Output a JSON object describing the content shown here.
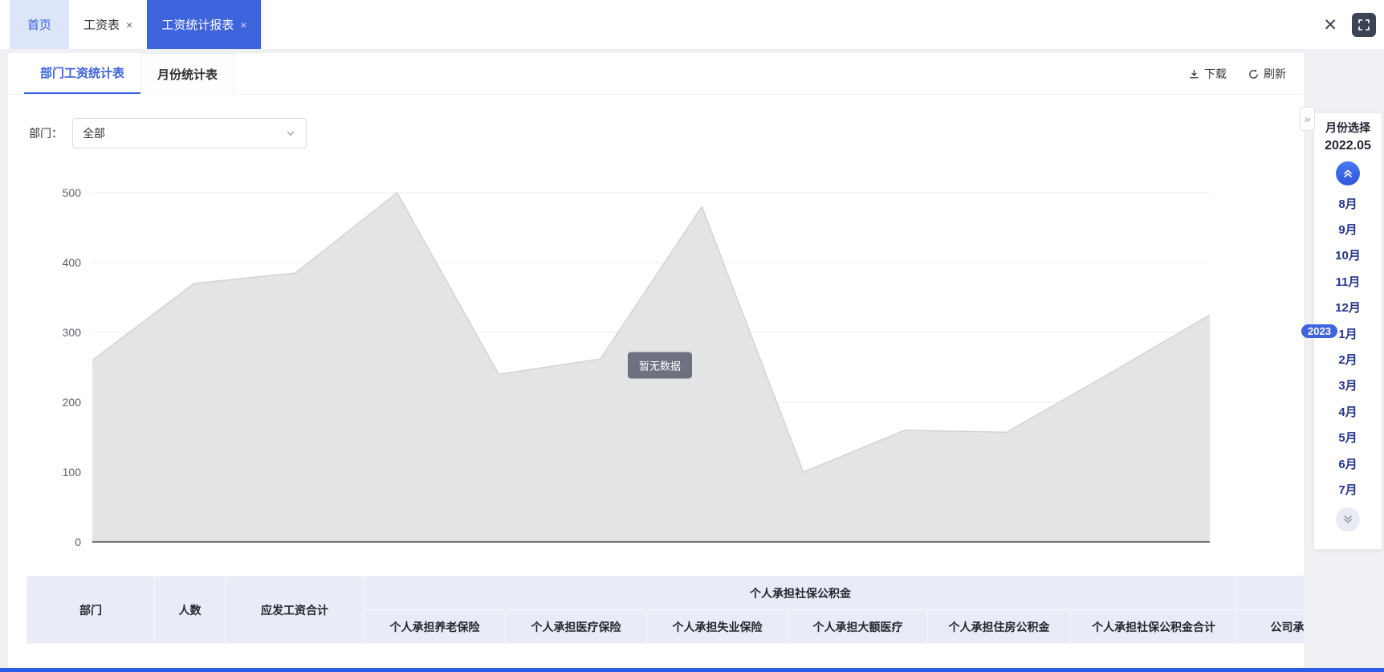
{
  "colors": {
    "accent": "#3d63dd",
    "table_header_bg": "#e9ecf6",
    "month_text": "#26368b",
    "empty_badge_bg": "#6e7280",
    "bottom_bar": "#2c5ce5"
  },
  "window": {
    "tabs": [
      {
        "label": "首页"
      },
      {
        "label": "工资表",
        "close": "×"
      },
      {
        "label": "工资统计报表",
        "close": "×"
      }
    ],
    "close_icon": "✕"
  },
  "subtabs": {
    "dept": "部门工资统计表",
    "month": "月份统计表"
  },
  "toolbar": {
    "download": "下载",
    "refresh": "刷新"
  },
  "filter": {
    "label": "部门：",
    "value": "全部"
  },
  "chart_data": {
    "type": "area",
    "title": "",
    "x": [
      0,
      1,
      2,
      3,
      4,
      5,
      6,
      7,
      8,
      9,
      10,
      11
    ],
    "values": [
      260,
      370,
      385,
      500,
      240,
      262,
      480,
      100,
      160,
      157,
      240,
      325
    ],
    "yticks": [
      0,
      100,
      200,
      300,
      400,
      500
    ],
    "ylim": [
      0,
      500
    ],
    "grid": true,
    "legend": "none",
    "area_color": "#e3e4e6",
    "line_color": "#d2d3d6",
    "empty_label": "暂无数据"
  },
  "month_panel": {
    "collapse": "»",
    "title": "月份选择",
    "current": "2022.05",
    "year_badge": "2023",
    "months": [
      "8月",
      "9月",
      "10月",
      "11月",
      "12月",
      "1月",
      "2月",
      "3月",
      "4月",
      "5月",
      "6月",
      "7月"
    ]
  },
  "table": {
    "col_dept": "部门",
    "col_count": "人数",
    "col_total": "应发工资合计",
    "group_personal": "个人承担社保公积金",
    "sub_pension": "个人承担养老保险",
    "sub_medical": "个人承担医疗保险",
    "sub_unemployment": "个人承担失业保险",
    "sub_major_medical": "个人承担大额医疗",
    "sub_housing": "个人承担住房公积金",
    "sub_total": "个人承担社保公积金合计",
    "col_company": "公司承担"
  }
}
